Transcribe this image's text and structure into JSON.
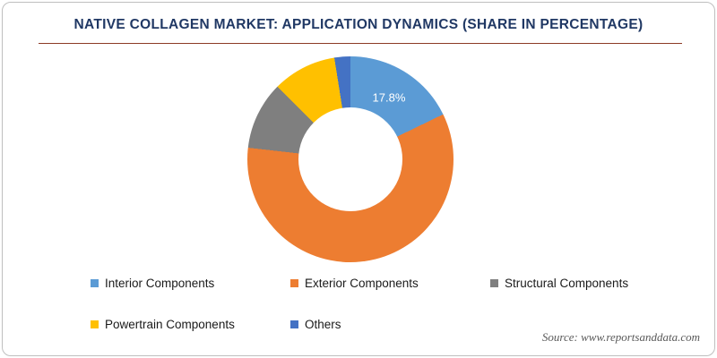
{
  "card": {
    "title": "NATIVE COLLAGEN MARKET: APPLICATION DYNAMICS (SHARE IN PERCENTAGE)",
    "source": "Source: www.reportsanddata.com"
  },
  "colors": {
    "title_text": "#203864",
    "title_rule": "#8c3a26",
    "card_border": "#bfbfbf",
    "slice_label_text": "#ffffff"
  },
  "chart_data": {
    "type": "pie",
    "subtype": "donut",
    "title": "NATIVE COLLAGEN MARKET: APPLICATION DYNAMICS (SHARE IN PERCENTAGE)",
    "start_angle_deg": 0,
    "direction": "clockwise",
    "categories": [
      "Interior Components",
      "Exterior Components",
      "Structural Components",
      "Powertrain Components",
      "Others"
    ],
    "values": [
      17.8,
      59.0,
      10.7,
      10.0,
      2.5
    ],
    "colors": [
      "#5b9bd5",
      "#ed7d31",
      "#7f7f7f",
      "#ffc000",
      "#4472c4"
    ],
    "data_labels": [
      "17.8%",
      "",
      "",
      "",
      ""
    ],
    "legend_position": "bottom",
    "legend_rows": [
      [
        "Interior Components",
        "Exterior Components",
        "Structural Components"
      ],
      [
        "Powertrain Components",
        "Others"
      ]
    ]
  }
}
